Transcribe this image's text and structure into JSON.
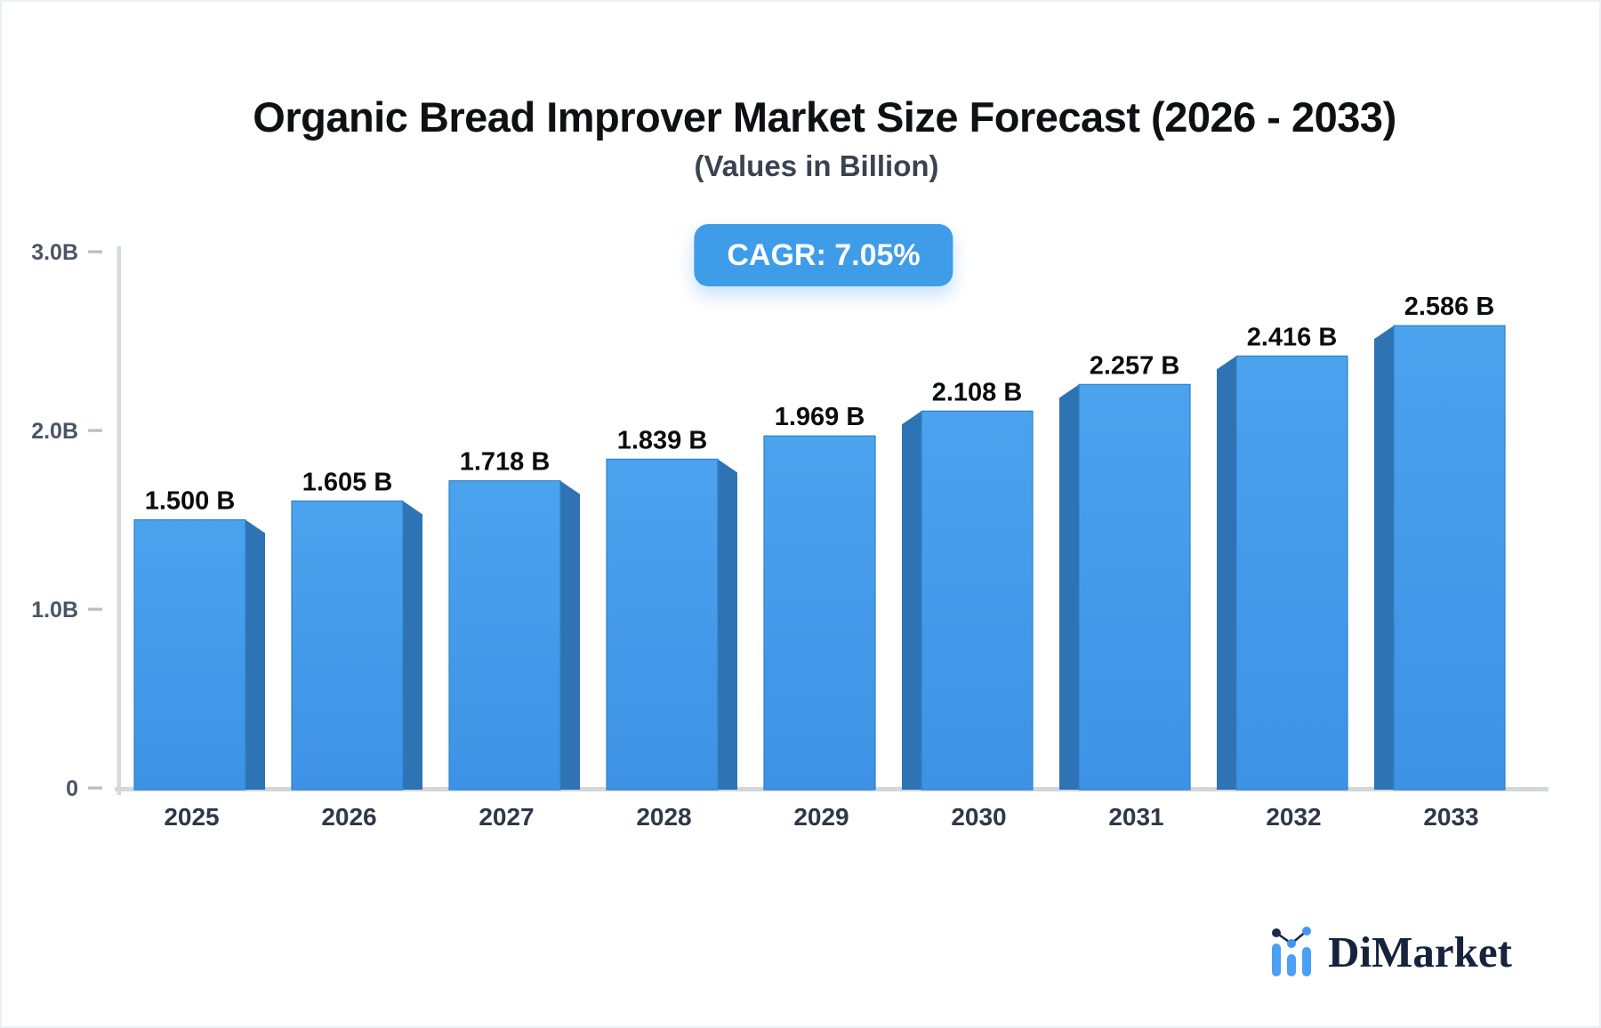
{
  "header": {
    "title": "Organic Bread Improver Market Size Forecast (2026 - 2033)",
    "subtitle": "(Values in Billion)",
    "cagr_badge": "CAGR: 7.05%"
  },
  "branding": {
    "logo_text": "DiMarket"
  },
  "colors": {
    "accent": "#3f9ce9",
    "bar_face_top": "#4ba3ee",
    "bar_face_bottom": "#3d92e5",
    "bar_face_stroke": "#3081c6",
    "bar_side": "#2e73b4",
    "axis_line": "#d6dadf",
    "baseline": "#d3d7dc",
    "tick": "#b7bcc6",
    "logo_blue": "#4aa0f5",
    "logo_navy": "#1b2a4a"
  },
  "chart_data": {
    "type": "bar",
    "title": "Organic Bread Improver Market Size Forecast (2026 - 2033)",
    "subtitle": "(Values in Billion)",
    "cagr_percent": 7.05,
    "unit": "Billion",
    "categories": [
      "2025",
      "2026",
      "2027",
      "2028",
      "2029",
      "2030",
      "2031",
      "2032",
      "2033"
    ],
    "values": [
      1.5,
      1.605,
      1.718,
      1.839,
      1.969,
      2.108,
      2.257,
      2.416,
      2.586
    ],
    "value_labels": [
      "1.500 B",
      "1.605 B",
      "1.718 B",
      "1.839 B",
      "1.969 B",
      "2.108 B",
      "2.257 B",
      "2.416 B",
      "2.586 B"
    ],
    "xlabel": "",
    "ylabel": "",
    "ylim": [
      0,
      3
    ],
    "y_ticks": [
      {
        "value": 0,
        "label": "0"
      },
      {
        "value": 1,
        "label": "1.0B"
      },
      {
        "value": 2,
        "label": "2.0B"
      },
      {
        "value": 3,
        "label": "3.0B"
      }
    ],
    "grid": false,
    "legend": false
  }
}
